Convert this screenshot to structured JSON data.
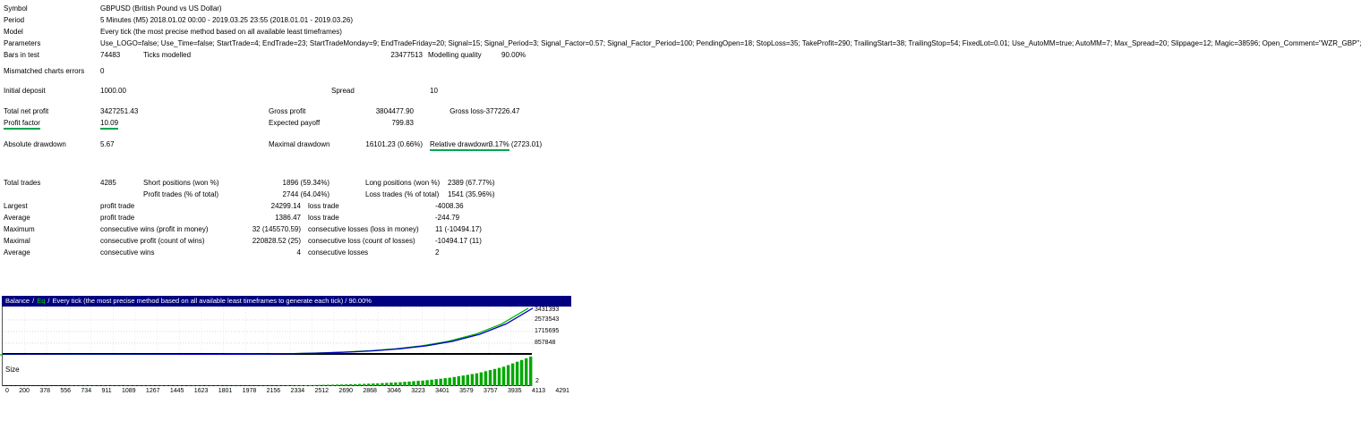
{
  "colors": {
    "underline_green": "#00a651",
    "balance_line": "#0000c8",
    "equity_line": "#00b400",
    "size_bars": "#00a800",
    "chart_header_bg": "#000080"
  },
  "report": {
    "symbol": {
      "label": "Symbol",
      "value": "GBPUSD (British Pound vs US Dollar)"
    },
    "period": {
      "label": "Period",
      "value": "5 Minutes (M5) 2018.01.02 00:00 - 2019.03.25 23:55 (2018.01.01 - 2019.03.26)"
    },
    "model": {
      "label": "Model",
      "value": "Every tick (the most precise method based on all available least timeframes)"
    },
    "parameters": {
      "label": "Parameters",
      "value": "Use_LOGO=false; Use_Time=false; StartTrade=4; EndTrade=23; StartTradeMonday=9; EndTradeFriday=20; Signal=15; Signal_Period=3; Signal_Factor=0.57; Signal_Factor_Period=100; PendingOpen=18; StopLoss=35; TakeProfit=290; TrailingStart=38; TrailingStop=54; FixedLot=0.01; Use_AutoMM=true; AutoMM=7; Max_Spread=20; Slippage=12; Magic=38596; Open_Comment=\"WZR_GBP\";"
    },
    "bars_in_test": {
      "label": "Bars in test",
      "value": "74483"
    },
    "ticks_modelled": {
      "label": "Ticks modelled",
      "value": "23477513"
    },
    "modelling_quality": {
      "label": "Modelling quality",
      "value": "90.00%"
    },
    "mismatched": {
      "label": "Mismatched charts errors",
      "value": "0"
    },
    "initial_deposit": {
      "label": "Initial deposit",
      "value": "1000.00"
    },
    "spread": {
      "label": "Spread",
      "value": "10"
    },
    "total_net_profit": {
      "label": "Total net profit",
      "value": "3427251.43"
    },
    "gross_profit": {
      "label": "Gross profit",
      "value": "3804477.90"
    },
    "gross_loss": {
      "label": "Gross loss",
      "value": "-377226.47"
    },
    "profit_factor": {
      "label": "Profit factor",
      "value": "10.09"
    },
    "expected_payoff": {
      "label": "Expected payoff",
      "value": "799.83"
    },
    "absolute_drawdown": {
      "label": "Absolute drawdown",
      "value": "5.67"
    },
    "maximal_drawdown": {
      "label": "Maximal drawdown",
      "value": "16101.23 (0.66%)"
    },
    "relative_drawdown": {
      "label": "Relative drawdown",
      "value_pct": "3.17%",
      "value_rest": " (2723.01)"
    },
    "total_trades": {
      "label": "Total trades",
      "value": "4285"
    },
    "short_positions": {
      "label": "Short positions (won %)",
      "value": "1896 (59.34%)"
    },
    "long_positions": {
      "label": "Long positions (won %)",
      "value": "2389 (67.77%)"
    },
    "profit_trades": {
      "label": "Profit trades (% of total)",
      "value": "2744 (64.04%)"
    },
    "loss_trades": {
      "label": "Loss trades (% of total)",
      "value": "1541 (35.96%)"
    },
    "largest": {
      "label": "Largest",
      "l1": "profit trade",
      "v1": "24299.14",
      "l2": "loss trade",
      "v2": "-4008.36"
    },
    "average_trade": {
      "label": "Average",
      "l1": "profit trade",
      "v1": "1386.47",
      "l2": "loss trade",
      "v2": "-244.79"
    },
    "maximum_consec": {
      "label": "Maximum",
      "l1": "consecutive wins (profit in money)",
      "v1": "32 (145570.59)",
      "l2": "consecutive losses (loss in money)",
      "v2": "11 (-10494.17)"
    },
    "maximal_consec": {
      "label": "Maximal",
      "l1": "consecutive profit (count of wins)",
      "v1": "220828.52 (25)",
      "l2": "consecutive loss (count of losses)",
      "v2": "-10494.17 (11)"
    },
    "average_consec": {
      "label": "Average",
      "l1": "consecutive wins",
      "v1": "4",
      "l2": "consecutive losses",
      "v2": "2"
    }
  },
  "chart_data": {
    "type": "line",
    "header": {
      "balance": "Balance",
      "sep": "/",
      "equity": "Eq",
      "info": "Every tick (the most precise method based on all available least timeframes to generate each tick) / 90.00%"
    },
    "ylim": [
      0,
      3550000
    ],
    "y_ticks": [
      3431393,
      2573543,
      1715695,
      857848
    ],
    "x_ticks": [
      "0",
      "200",
      "378",
      "556",
      "734",
      "911",
      "1089",
      "1267",
      "1445",
      "1623",
      "1801",
      "1978",
      "2156",
      "2334",
      "2512",
      "2690",
      "2868",
      "3046",
      "3223",
      "3401",
      "3579",
      "3757",
      "3935",
      "4113",
      "4291"
    ],
    "series": [
      {
        "name": "Balance",
        "color": "#0000c8",
        "x": [
          0,
          215,
          429,
          644,
          858,
          1073,
          1287,
          1502,
          1716,
          1931,
          2146,
          2360,
          2575,
          2789,
          3004,
          3218,
          3433,
          3647,
          3862,
          4076,
          4291
        ],
        "y": [
          1000,
          1500,
          2260,
          3390,
          5090,
          7650,
          11490,
          17250,
          25910,
          38920,
          58450,
          87800,
          131900,
          198100,
          297500,
          446800,
          671100,
          1007900,
          1513800,
          2273600,
          3431393
        ]
      }
    ],
    "equity": {
      "name": "Eq",
      "color": "#00b400"
    },
    "size_pane": {
      "label": "Size",
      "right_label": "2",
      "color": "#00a800"
    }
  }
}
